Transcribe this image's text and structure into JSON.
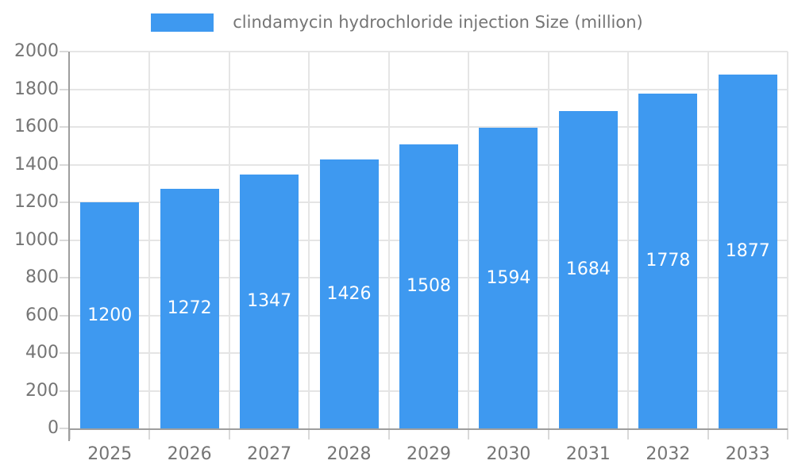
{
  "chart_data": {
    "type": "bar",
    "categories": [
      "2025",
      "2026",
      "2027",
      "2028",
      "2029",
      "2030",
      "2031",
      "2032",
      "2033"
    ],
    "series": [
      {
        "name": "clindamycin hydrochloride injection Size (million)",
        "values": [
          1200,
          1272,
          1347,
          1426,
          1508,
          1594,
          1684,
          1778,
          1877
        ]
      }
    ],
    "title": "",
    "xlabel": "",
    "ylabel": "",
    "ylim": [
      0,
      2000
    ],
    "yticks": [
      0,
      200,
      400,
      600,
      800,
      1000,
      1200,
      1400,
      1600,
      1800,
      2000
    ],
    "grid": true,
    "value_labels_inside_bars": true,
    "legend_position": "top-center",
    "colors": {
      "bar": "#3E99F0",
      "grid": "#E5E5E5",
      "tick": "#D9D9D9",
      "axis": "#9E9E9E",
      "axis_text": "#757575",
      "legend_text": "#757575",
      "value_text": "#FFFFFF",
      "background": "#FFFFFF"
    }
  }
}
